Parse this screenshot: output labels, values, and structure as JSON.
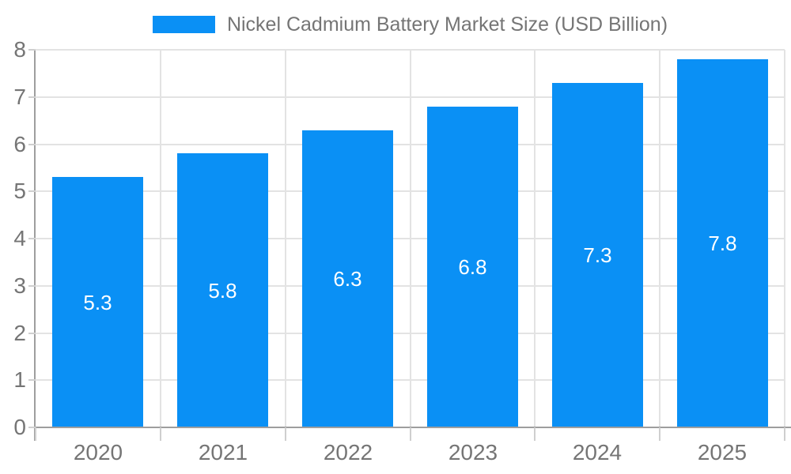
{
  "page": {
    "background": "#ffffff"
  },
  "chart_data": {
    "type": "bar",
    "title": "Nickel Cadmium Battery Market Size (USD Billion)",
    "legend_position": "top-center",
    "categories": [
      "2020",
      "2021",
      "2022",
      "2023",
      "2024",
      "2025"
    ],
    "values": [
      5.3,
      5.8,
      6.3,
      6.8,
      7.3,
      7.8
    ],
    "bar_labels": [
      "5.3",
      "5.8",
      "6.3",
      "6.8",
      "7.3",
      "7.8"
    ],
    "xlabel": "",
    "ylabel": "",
    "ylim": [
      0,
      8
    ],
    "y_ticks": [
      0,
      1,
      2,
      3,
      4,
      5,
      6,
      7,
      8
    ],
    "grid": true,
    "colors": {
      "bar": "#0a90f5",
      "bar_label": "#ffffff",
      "grid": "#e3e3e3",
      "axis": "#9e9e9e",
      "tick": "#cfcfcf",
      "text": "#757575",
      "background": "#ffffff"
    }
  }
}
